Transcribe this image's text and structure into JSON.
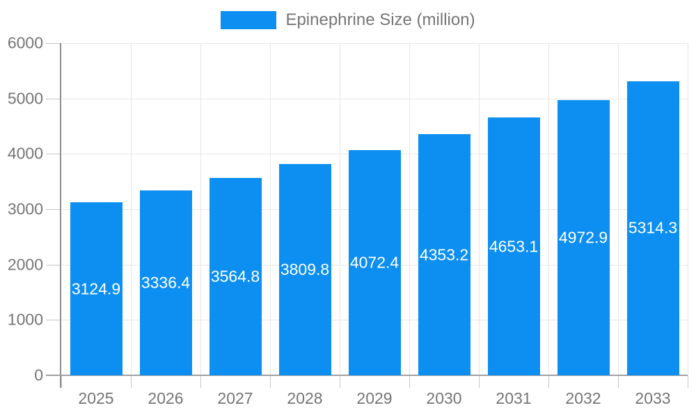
{
  "legend": {
    "label": "Epinephrine Size (million)"
  },
  "colors": {
    "bar": "#0d8ff2",
    "grid": "#e6e6e6",
    "axis": "#a0a0a0",
    "tick": "#c6c6c6",
    "text": "#757575",
    "value_label": "#ffffff"
  },
  "chart_data": {
    "type": "bar",
    "title": "Epinephrine Size (million)",
    "categories": [
      "2025",
      "2026",
      "2027",
      "2028",
      "2029",
      "2030",
      "2031",
      "2032",
      "2033"
    ],
    "values": [
      3124.9,
      3336.4,
      3564.8,
      3809.8,
      4072.4,
      4353.2,
      4653.1,
      4972.9,
      5314.3
    ],
    "xlabel": "",
    "ylabel": "",
    "ylim": [
      0,
      6000
    ],
    "ytick_step": 1000,
    "grid": true,
    "legend_position": "top",
    "value_labels": "inside-center"
  }
}
